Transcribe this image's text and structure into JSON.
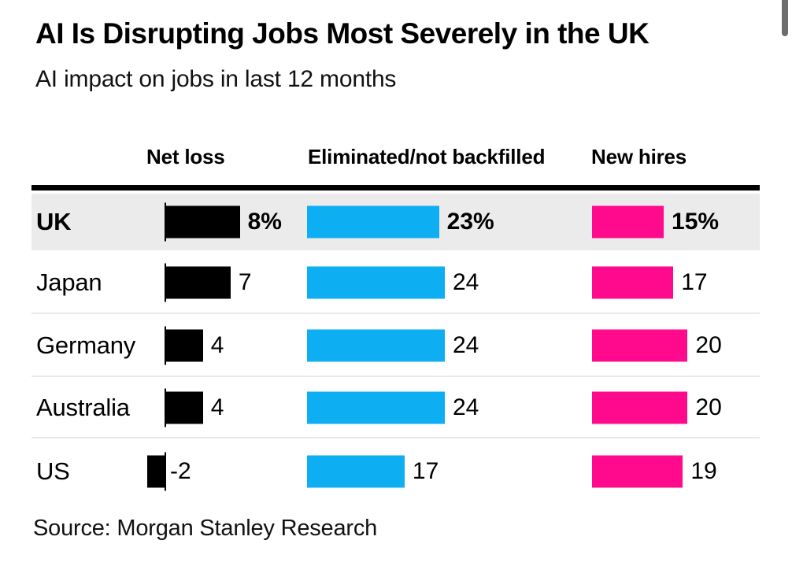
{
  "header": {
    "title": "AI Is Disrupting Jobs Most Severely in the UK",
    "subtitle": "AI impact on jobs in last 12 months"
  },
  "source_note": "Source: Morgan Stanley Research",
  "scrollbar": {
    "thumb_color": "#6d6d6d"
  },
  "chart_data": {
    "type": "bar",
    "orientation": "horizontal",
    "title": "AI Is Disrupting Jobs Most Severely in the UK",
    "subtitle": "AI impact on jobs in last 12 months",
    "columns": [
      "Net loss",
      "Eliminated/not backfilled",
      "New hires"
    ],
    "categories": [
      "UK",
      "Japan",
      "Germany",
      "Australia",
      "US"
    ],
    "series": [
      {
        "name": "Net loss",
        "color": "#000000",
        "values": [
          8,
          7,
          4,
          4,
          -2
        ],
        "labels": [
          "8%",
          "7",
          "4",
          "4",
          "-2"
        ]
      },
      {
        "name": "Eliminated/not backfilled",
        "color": "#0daef2",
        "values": [
          23,
          24,
          24,
          24,
          17
        ],
        "labels": [
          "23%",
          "24",
          "24",
          "24",
          "17"
        ]
      },
      {
        "name": "New hires",
        "color": "#ff0a8c",
        "values": [
          15,
          17,
          20,
          20,
          19
        ],
        "labels": [
          "15%",
          "17",
          "20",
          "20",
          "19"
        ]
      }
    ],
    "highlighted_category": "UK",
    "highlight_bg": "#ebebeb",
    "grid": "row-dividers-only",
    "legend_position": "column-headers",
    "value_labels_shown": true,
    "unit_suffix_on_first_row": "%",
    "source": "Source: Morgan Stanley Research"
  }
}
